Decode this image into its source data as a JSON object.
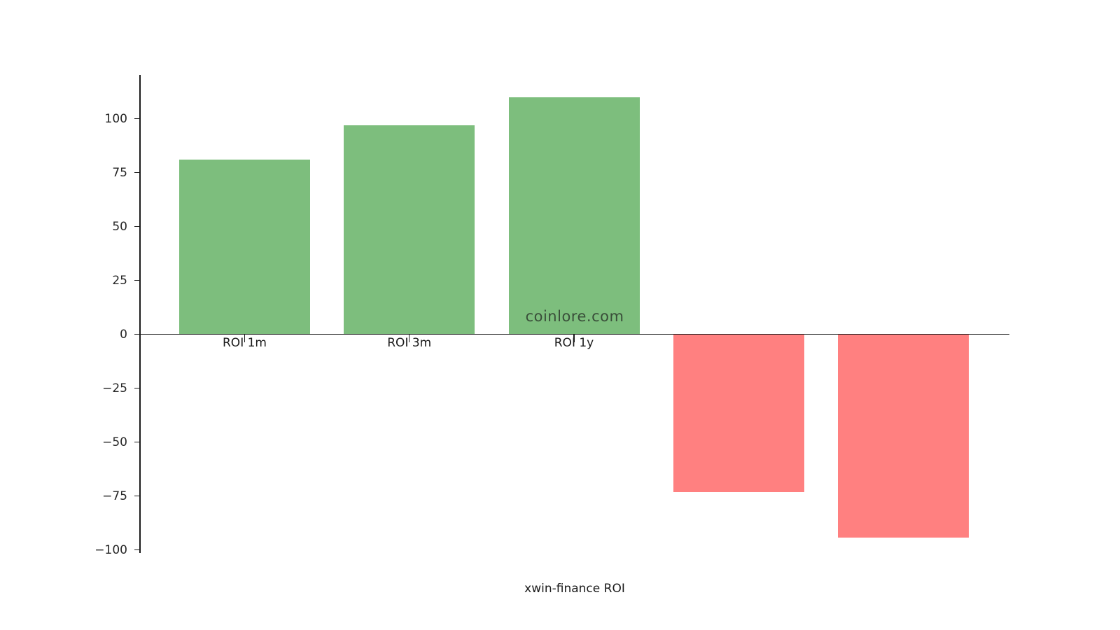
{
  "watermark": {
    "text": "coinlore.com"
  },
  "footer": {
    "title": "xwin-finance ROI"
  },
  "chart_data": {
    "type": "bar",
    "title": "xwin-finance ROI",
    "categories": [
      "ROI 1m",
      "ROI 3m",
      "ROI 1y",
      "",
      ""
    ],
    "values": [
      81,
      97,
      110,
      -73,
      -94
    ],
    "yticks": [
      100,
      75,
      50,
      25,
      0,
      -25,
      -50,
      -75,
      -100
    ],
    "ylim": [
      -102,
      121
    ],
    "xlabel": "",
    "ylabel": "",
    "grid": false,
    "legend": "none",
    "positive_color": "#7dbe7d",
    "negative_color": "#ff8080",
    "axis_color": "#1a1a1a",
    "tick_label_color": "#262626",
    "watermark_color": "rgba(38,46,38,0.78)",
    "background_color": "#ffffff"
  }
}
